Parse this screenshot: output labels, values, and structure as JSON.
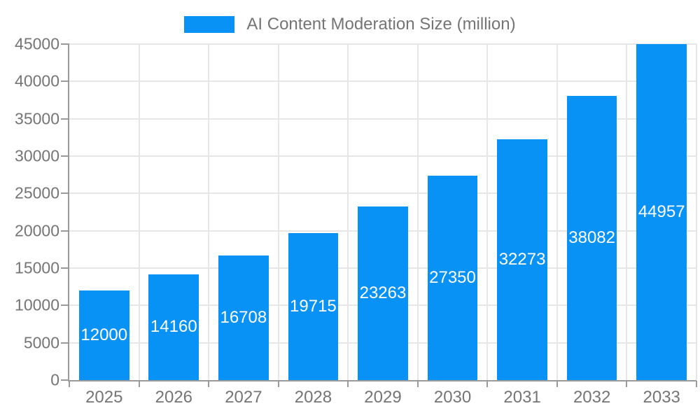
{
  "chart_data": {
    "type": "bar",
    "title": "AI Content Moderation Size (million)",
    "legend": {
      "position": "top",
      "entries": [
        "AI Content Moderation Size (million)"
      ]
    },
    "categories": [
      "2025",
      "2026",
      "2027",
      "2028",
      "2029",
      "2030",
      "2031",
      "2032",
      "2033"
    ],
    "series": [
      {
        "name": "AI Content Moderation Size (million)",
        "values": [
          12000,
          14160,
          16708,
          19715,
          23263,
          27350,
          32273,
          38082,
          44957
        ]
      }
    ],
    "xlabel": "",
    "ylabel": "",
    "ylim": [
      0,
      45000
    ],
    "yticks": [
      0,
      5000,
      10000,
      15000,
      20000,
      25000,
      30000,
      35000,
      40000,
      45000
    ],
    "grid": true,
    "value_labels_position": "inside-center",
    "bar_color": "#0992f5",
    "value_label_color": "#ffffff",
    "text_color": "#757575",
    "axis_color": "#9a9a9a",
    "grid_color": "#e6e6e6",
    "background_color": "#ffffff"
  }
}
